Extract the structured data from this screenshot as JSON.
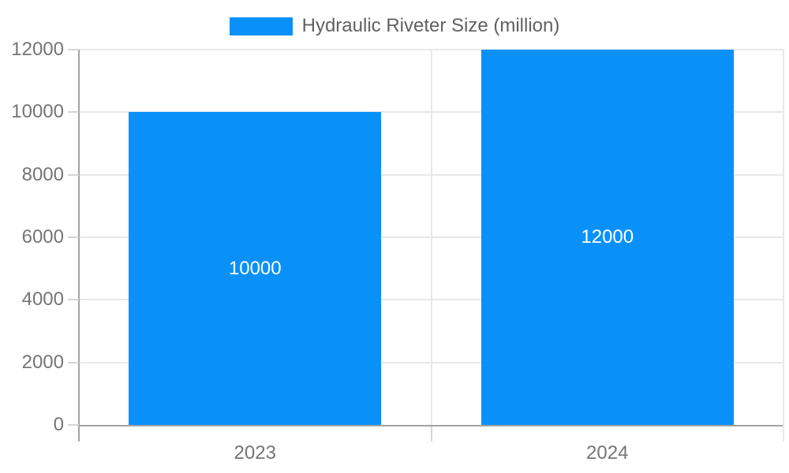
{
  "chart_data": {
    "type": "bar",
    "title": "Hydraulic Riveter Size (million)",
    "legend": {
      "position": "top",
      "entries": [
        "Hydraulic Riveter Size (million)"
      ]
    },
    "categories": [
      "2023",
      "2024"
    ],
    "series": [
      {
        "name": "Hydraulic Riveter Size (million)",
        "values": [
          10000,
          12000
        ]
      }
    ],
    "bar_labels": [
      "10000",
      "12000"
    ],
    "xlabel": "",
    "ylabel": "",
    "ylim": [
      0,
      12000
    ],
    "ytick_step": 2000,
    "yticks": [
      "0",
      "2000",
      "4000",
      "6000",
      "8000",
      "10000",
      "12000"
    ],
    "grid": "horizontal gridlines plus vertical category-boundary line",
    "colors": {
      "bar": "#0991f9",
      "bar_label_text": "#ffffff",
      "axis_label_text": "#757575",
      "legend_text": "#616161",
      "gridline": "#e8e8e8",
      "tick": "#d6d6d6",
      "axis_line": "#a3a3a3",
      "background": "#ffffff"
    }
  }
}
